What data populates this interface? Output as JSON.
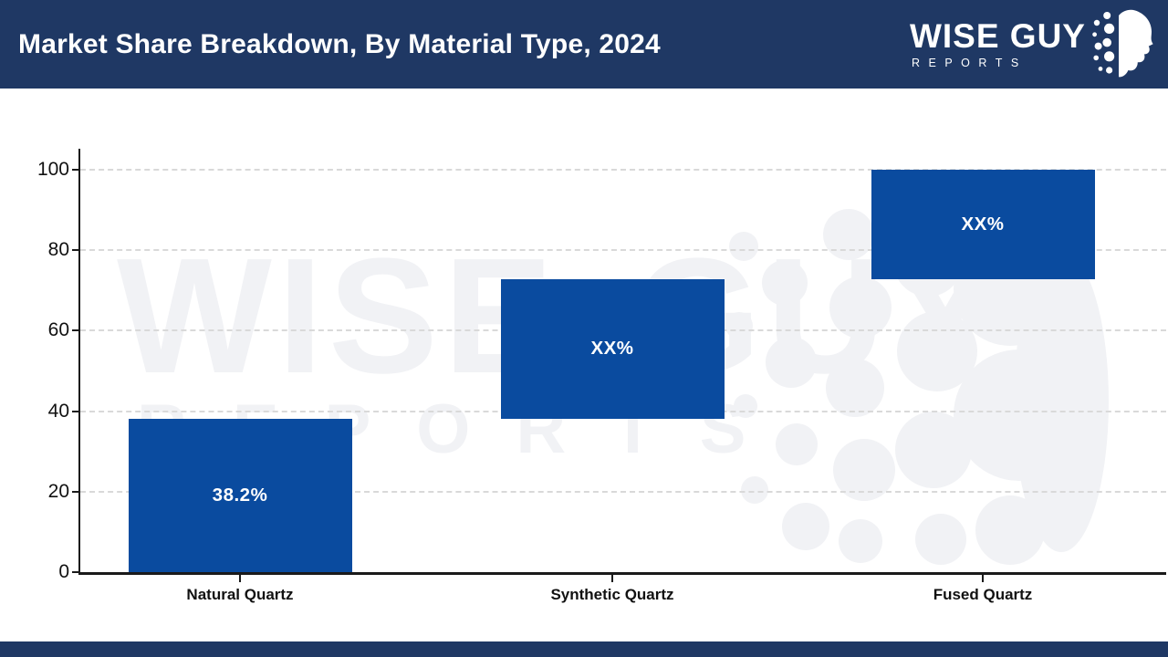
{
  "header": {
    "title": "Market Share Breakdown, By Material Type, 2024",
    "logo": {
      "line1": "WISE GUY",
      "line2": "REPORTS"
    }
  },
  "watermark": {
    "line1": "WISE GUY",
    "line2": "REPORTS"
  },
  "colors": {
    "header_bg": "#1f3864",
    "footer_bg": "#1f3864",
    "bar": "#0a4b9f",
    "bar_label": "#ffffff",
    "grid": "#d9d9d9",
    "axis": "#1a1a1a",
    "tick_label": "#111111",
    "watermark": "#f1f2f5",
    "background": "#ffffff"
  },
  "chart_data": {
    "type": "bar",
    "subtype": "waterfall-breakdown",
    "title": "Market Share Breakdown, By Material Type, 2024",
    "categories": [
      "Natural Quartz",
      "Synthetic Quartz",
      "Fused Quartz"
    ],
    "segments": [
      {
        "category": "Natural Quartz",
        "start": 0,
        "end": 38.2,
        "label": "38.2%"
      },
      {
        "category": "Synthetic Quartz",
        "start": 38.2,
        "end": 72.7,
        "label": "XX%"
      },
      {
        "category": "Fused Quartz",
        "start": 72.7,
        "end": 100,
        "label": "XX%"
      }
    ],
    "ylim": [
      0,
      100
    ],
    "yticks": [
      0,
      20,
      40,
      60,
      80,
      100
    ],
    "xlabel": "",
    "ylabel": "",
    "grid": "horizontal-dashed",
    "legend": "none",
    "bar_value_labels_inside": true
  }
}
